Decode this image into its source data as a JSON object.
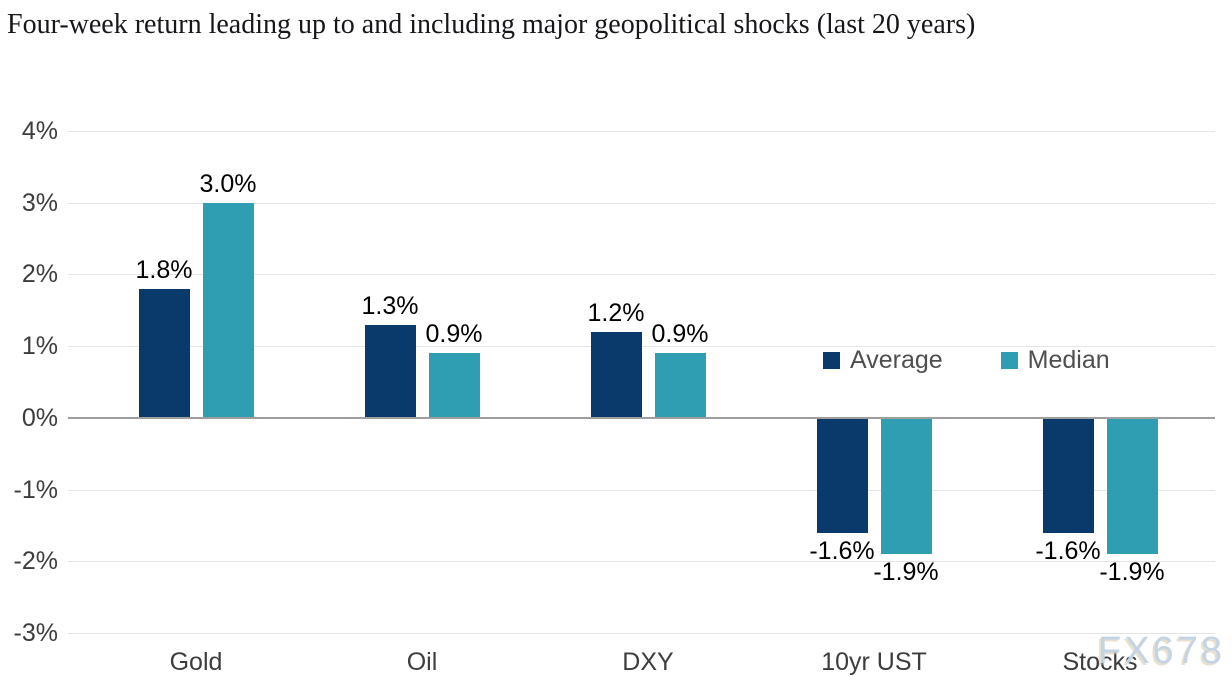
{
  "title": "Four-week return leading up to and including major geopolitical shocks (last 20 years)",
  "watermark": "FX678",
  "colors": {
    "average_bar": "#0a3a6c",
    "median_bar": "#2f9db2",
    "gridline": "#e4e4e4",
    "zero_line": "#9e9e9e",
    "tick_text": "#3d3d3d",
    "legend_text": "#4f4f4f",
    "title_text": "#17171b"
  },
  "chart_data": {
    "type": "bar",
    "title": "Four-week return leading up to and including major geopolitical shocks (last 20 years)",
    "categories": [
      "Gold",
      "Oil",
      "DXY",
      "10yr UST",
      "Stocks"
    ],
    "series": [
      {
        "name": "Average",
        "color": "#0a3a6c",
        "values": [
          1.8,
          1.3,
          1.2,
          -1.6,
          -1.6
        ],
        "labels": [
          "1.8%",
          "1.3%",
          "1.2%",
          "-1.6%",
          "-1.6%"
        ]
      },
      {
        "name": "Median",
        "color": "#2f9db2",
        "values": [
          3.0,
          0.9,
          0.9,
          -1.9,
          -1.9
        ],
        "labels": [
          "3.0%",
          "0.9%",
          "0.9%",
          "-1.9%",
          "-1.9%"
        ]
      }
    ],
    "xlabel": "",
    "ylabel": "",
    "ylim": [
      -3,
      4
    ],
    "y_axis": {
      "ticks": [
        "4%",
        "3%",
        "2%",
        "1%",
        "0%",
        "-1%",
        "-2%",
        "-3%"
      ],
      "tick_values": [
        4,
        3,
        2,
        1,
        0,
        -1,
        -2,
        -3
      ]
    },
    "grid": true,
    "legend_position": "inside-top-right"
  }
}
